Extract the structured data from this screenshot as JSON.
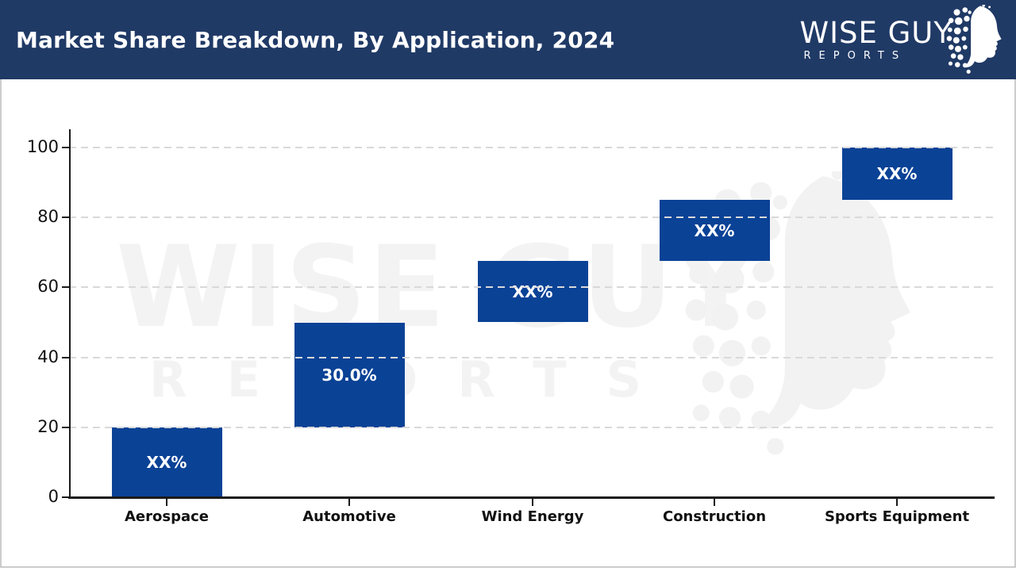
{
  "header": {
    "title": "Market Share Breakdown, By Application, 2024"
  },
  "logo": {
    "line1": "WISE GUY",
    "line2": "REPORTS"
  },
  "watermark": {
    "line1": "WISE GUY",
    "line2": "REPORTS"
  },
  "chart_data": {
    "type": "bar",
    "subtype": "floating-waterfall",
    "title": "Market Share Breakdown, By Application, 2024",
    "categories": [
      "Aerospace",
      "Automotive",
      "Wind Energy",
      "Construction",
      "Sports Equipment"
    ],
    "segments": [
      {
        "category": "Aerospace",
        "start": 0,
        "end": 20,
        "value_label": "XX%"
      },
      {
        "category": "Automotive",
        "start": 20,
        "end": 50,
        "value_label": "30.0%"
      },
      {
        "category": "Wind Energy",
        "start": 50,
        "end": 67.5,
        "value_label": "XX%"
      },
      {
        "category": "Construction",
        "start": 67.5,
        "end": 85,
        "value_label": "XX%"
      },
      {
        "category": "Sports Equipment",
        "start": 85,
        "end": 100,
        "value_label": "XX%"
      }
    ],
    "yticks": [
      0,
      20,
      40,
      60,
      80,
      100
    ],
    "ylim": [
      0,
      105
    ],
    "xlabel": "",
    "ylabel": "",
    "grid": "horizontal-dashed-over-bars",
    "legend": "none",
    "bar_color": "#0a4296"
  },
  "colors": {
    "header_bg": "#203a66",
    "bar": "#0a4296",
    "grid": "#d9d9d9",
    "axis": "#1a1a1a",
    "watermark": "#f3f3f3",
    "frame_border": "#cccccc"
  }
}
